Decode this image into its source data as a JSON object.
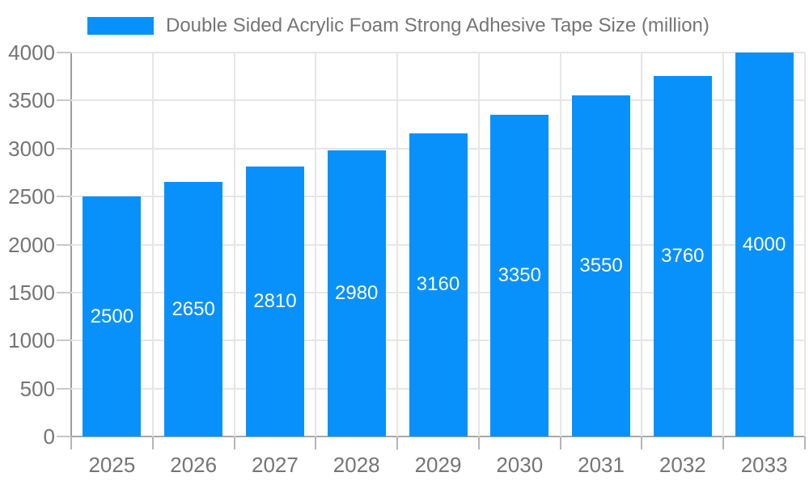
{
  "legend": {
    "position": "top"
  },
  "chart_data": {
    "type": "bar",
    "title": "Double Sided Acrylic Foam Strong Adhesive Tape Size (million)",
    "series_name": "Double Sided Acrylic Foam Strong Adhesive Tape Size (million)",
    "categories": [
      "2025",
      "2026",
      "2027",
      "2028",
      "2029",
      "2030",
      "2031",
      "2032",
      "2033"
    ],
    "values": [
      2500,
      2650,
      2810,
      2980,
      3160,
      3350,
      3550,
      3760,
      4000
    ],
    "xlabel": "",
    "ylabel": "",
    "ylim": [
      0,
      4000
    ],
    "yticks": [
      0,
      500,
      1000,
      1500,
      2000,
      2500,
      3000,
      3500,
      4000
    ],
    "grid": "on",
    "legend_position": "top",
    "value_labels": "inside-center",
    "colors": {
      "bar": "#0991fb",
      "value_label": "#ffffff",
      "axis_label": "#757575",
      "gridline": "#e6e6e6",
      "axis_line": "#9e9e9e",
      "background": "#ffffff"
    }
  }
}
